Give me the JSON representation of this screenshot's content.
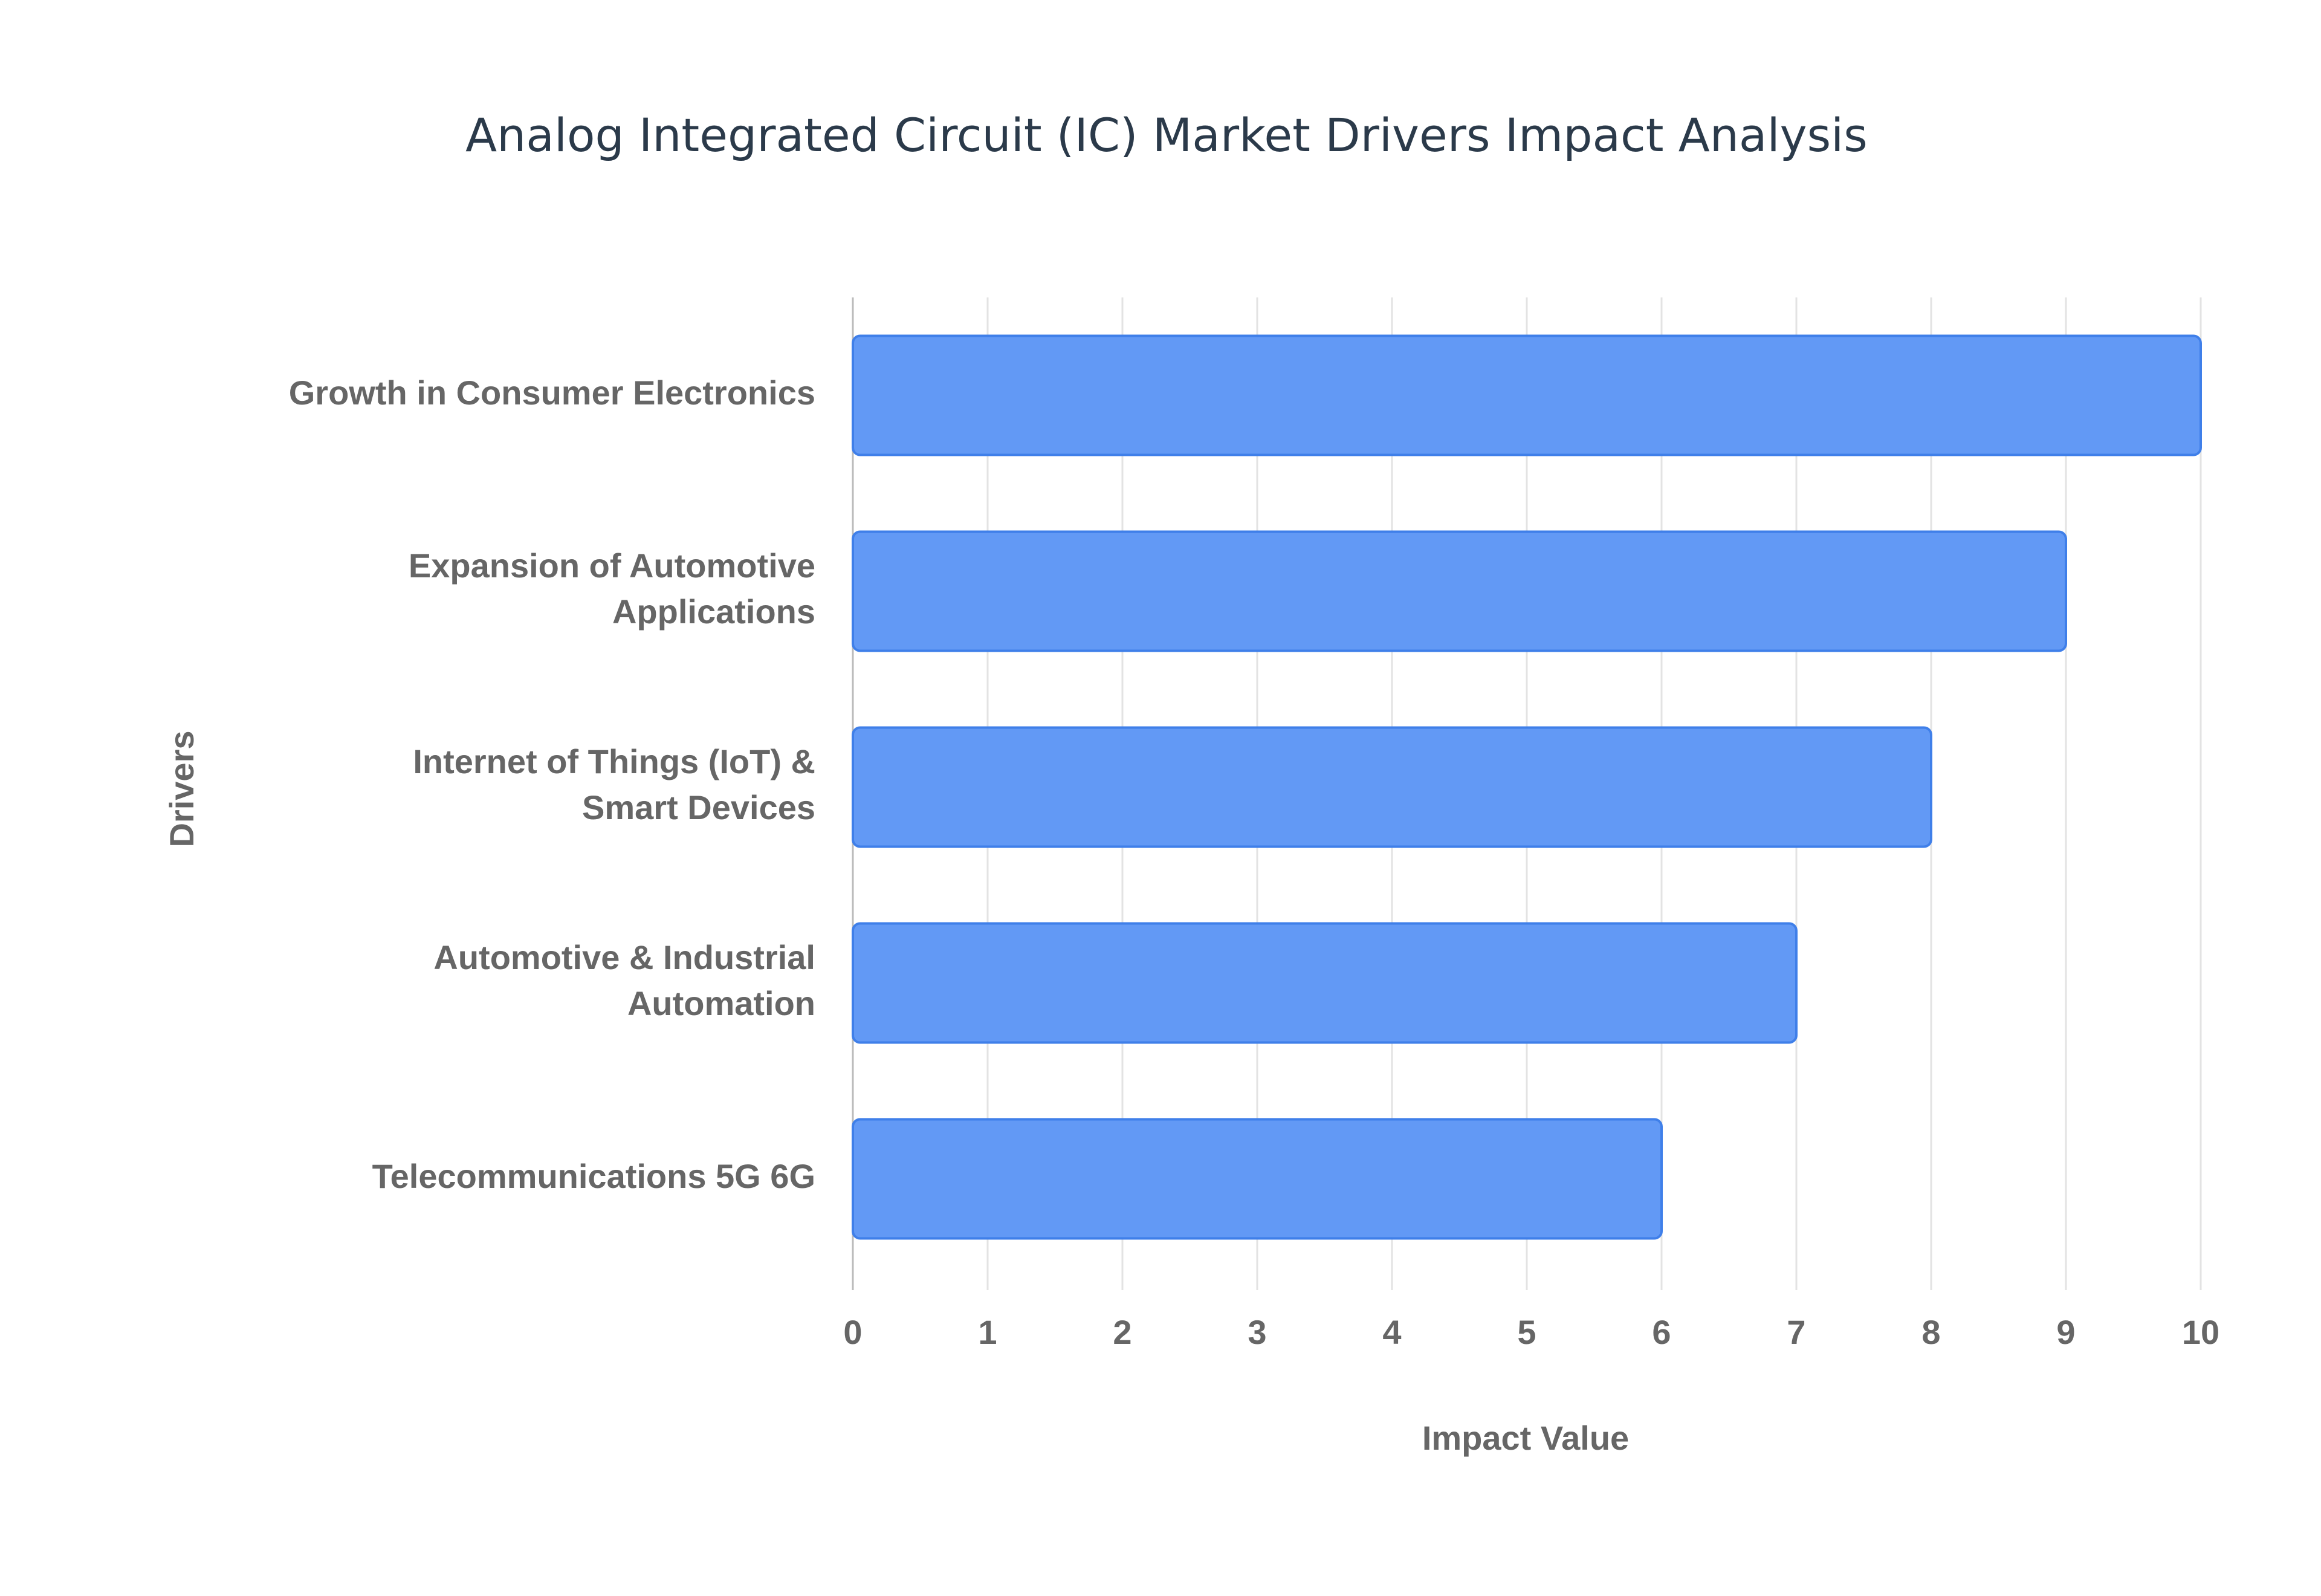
{
  "chart_data": {
    "type": "bar",
    "orientation": "horizontal",
    "title": "Analog Integrated Circuit (IC) Market Drivers Impact Analysis",
    "x_label": "Impact Value",
    "y_label": "Drivers",
    "categories": [
      "Growth in Consumer Electronics",
      "Expansion of Automotive Applications",
      "Internet of Things (IoT) & Smart Devices",
      "Automotive & Industrial Automation",
      "Telecommunications 5G 6G"
    ],
    "values": [
      10,
      9,
      8,
      7,
      6
    ],
    "color": "#6299f5",
    "edge_color": "#3f7fe9",
    "xlim": [
      0,
      10
    ],
    "xticks": [
      0,
      1,
      2,
      3,
      4,
      5,
      6,
      7,
      8,
      9,
      10
    ],
    "grid": true
  }
}
